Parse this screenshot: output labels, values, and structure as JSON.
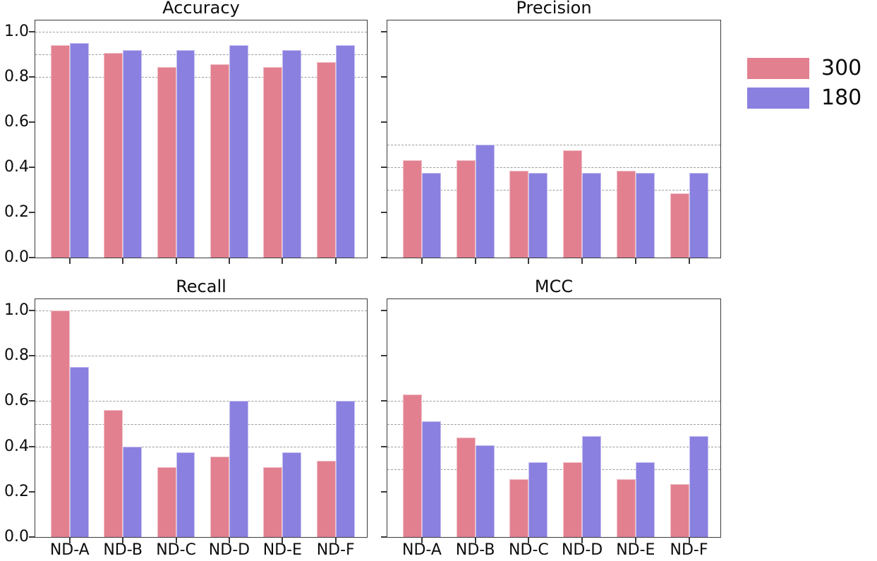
{
  "figure": {
    "background": "#ffffff"
  },
  "legend": {
    "position": "outside-upper-right",
    "items": [
      {
        "label": "300",
        "color": "#e28090"
      },
      {
        "label": "180",
        "color": "#8a80e0"
      }
    ]
  },
  "chart_data": [
    {
      "type": "bar",
      "title": "Accuracy",
      "categories": [
        "ND-A",
        "ND-B",
        "ND-C",
        "ND-D",
        "ND-E",
        "ND-F"
      ],
      "series": [
        {
          "name": "300",
          "color": "#e28090",
          "values": [
            0.94,
            0.905,
            0.845,
            0.855,
            0.845,
            0.865
          ]
        },
        {
          "name": "180",
          "color": "#8a80e0",
          "values": [
            0.95,
            0.92,
            0.92,
            0.94,
            0.92,
            0.94
          ]
        }
      ],
      "ylim": [
        0,
        1.05
      ],
      "yticks": [
        0,
        0.2,
        0.4,
        0.6,
        0.8,
        1.0
      ],
      "ytick_labels": [
        "0.0",
        "0.2",
        "0.4",
        "0.6",
        "0.8",
        "1.0"
      ],
      "gridlines": [
        0.8,
        0.9,
        1.0
      ],
      "grid_style": "horizontal-dashed",
      "y_tick_labels_visible": true,
      "x_tick_labels_visible": false
    },
    {
      "type": "bar",
      "title": "Precision",
      "categories": [
        "ND-A",
        "ND-B",
        "ND-C",
        "ND-D",
        "ND-E",
        "ND-F"
      ],
      "series": [
        {
          "name": "300",
          "color": "#e28090",
          "values": [
            0.43,
            0.43,
            0.385,
            0.475,
            0.385,
            0.285
          ]
        },
        {
          "name": "180",
          "color": "#8a80e0",
          "values": [
            0.375,
            0.5,
            0.375,
            0.375,
            0.375,
            0.375
          ]
        }
      ],
      "ylim": [
        0,
        1.05
      ],
      "yticks": [
        0,
        0.2,
        0.4,
        0.6,
        0.8,
        1.0
      ],
      "ytick_labels": [
        "0.0",
        "0.2",
        "0.4",
        "0.6",
        "0.8",
        "1.0"
      ],
      "gridlines": [
        0.3,
        0.4,
        0.5
      ],
      "grid_style": "horizontal-dashed",
      "y_tick_labels_visible": false,
      "x_tick_labels_visible": false
    },
    {
      "type": "bar",
      "title": "Recall",
      "categories": [
        "ND-A",
        "ND-B",
        "ND-C",
        "ND-D",
        "ND-E",
        "ND-F"
      ],
      "series": [
        {
          "name": "300",
          "color": "#e28090",
          "values": [
            1.0,
            0.56,
            0.31,
            0.355,
            0.31,
            0.335
          ]
        },
        {
          "name": "180",
          "color": "#8a80e0",
          "values": [
            0.75,
            0.4,
            0.375,
            0.6,
            0.375,
            0.6
          ]
        }
      ],
      "ylim": [
        0,
        1.05
      ],
      "yticks": [
        0,
        0.2,
        0.4,
        0.6,
        0.8,
        1.0
      ],
      "ytick_labels": [
        "0.0",
        "0.2",
        "0.4",
        "0.6",
        "0.8",
        "1.0"
      ],
      "gridlines": [
        0.4,
        0.5,
        0.6,
        0.8,
        1.0
      ],
      "grid_style": "horizontal-dashed",
      "y_tick_labels_visible": true,
      "x_tick_labels_visible": true
    },
    {
      "type": "bar",
      "title": "MCC",
      "categories": [
        "ND-A",
        "ND-B",
        "ND-C",
        "ND-D",
        "ND-E",
        "ND-F"
      ],
      "series": [
        {
          "name": "300",
          "color": "#e28090",
          "values": [
            0.63,
            0.44,
            0.255,
            0.33,
            0.255,
            0.235
          ]
        },
        {
          "name": "180",
          "color": "#8a80e0",
          "values": [
            0.51,
            0.405,
            0.33,
            0.445,
            0.33,
            0.445
          ]
        }
      ],
      "ylim": [
        0,
        1.05
      ],
      "yticks": [
        0,
        0.2,
        0.4,
        0.6,
        0.8,
        1.0
      ],
      "ytick_labels": [
        "0.0",
        "0.2",
        "0.4",
        "0.6",
        "0.8",
        "1.0"
      ],
      "gridlines": [
        0.3,
        0.4,
        0.5,
        0.6
      ],
      "grid_style": "horizontal-dashed",
      "y_tick_labels_visible": false,
      "x_tick_labels_visible": true
    }
  ]
}
